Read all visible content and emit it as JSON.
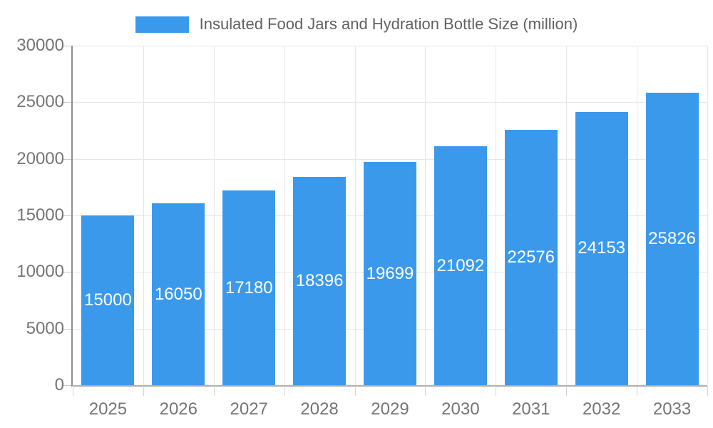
{
  "legend": {
    "label": "Insulated Food Jars and Hydration Bottle Size (million)",
    "swatch_color": "#3B99EC"
  },
  "chart_data": {
    "type": "bar",
    "title": "Insulated Food Jars and Hydration Bottle Size (million)",
    "categories": [
      "2025",
      "2026",
      "2027",
      "2028",
      "2029",
      "2030",
      "2031",
      "2032",
      "2033"
    ],
    "values": [
      15000,
      16050,
      17180,
      18396,
      19699,
      21092,
      22576,
      24153,
      25826
    ],
    "xlabel": "",
    "ylabel": "",
    "ylim": [
      0,
      30000
    ],
    "yticks": [
      0,
      5000,
      10000,
      15000,
      20000,
      25000,
      30000
    ],
    "grid": true,
    "legend_position": "top",
    "value_labels": "inside-center"
  },
  "colors": {
    "background": "#FFFFFF",
    "bar": "#3B99EC",
    "y_axis_line": "#8F8F8F",
    "x_axis_line": "#B0B0B0",
    "gridline": "#E6E6E6",
    "tick": "#D0D0D0",
    "tick_label": "#757575",
    "title": "#616161",
    "value_label": "#FFFFFF"
  }
}
